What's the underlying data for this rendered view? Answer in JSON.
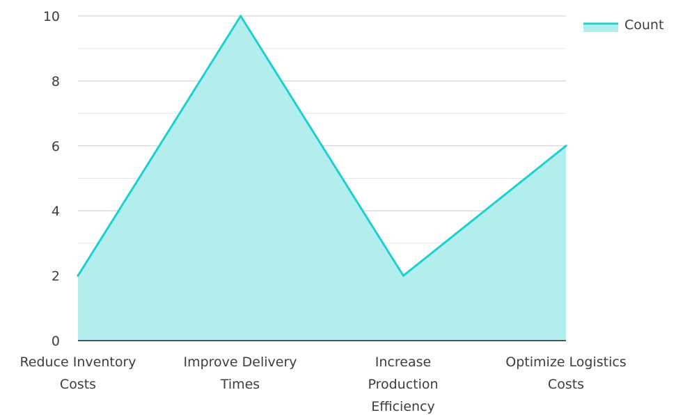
{
  "chart_data": {
    "type": "area",
    "categories": [
      [
        "Reduce Inventory",
        "Costs"
      ],
      [
        "Improve Delivery",
        "Times"
      ],
      [
        "Increase",
        "Production",
        "Efficiency"
      ],
      [
        "Optimize Logistics",
        "Costs"
      ]
    ],
    "series": [
      {
        "name": "Count",
        "values": [
          2,
          10,
          2,
          6
        ]
      }
    ],
    "ylim": [
      0,
      10
    ],
    "yticks": [
      "0",
      "2",
      "4",
      "6",
      "8",
      "10"
    ],
    "grid": true,
    "legend_position": "top-right",
    "colors": {
      "line": "#1ecfcf",
      "fill": "#b2eeee",
      "grid_major": "#cfcfcf",
      "grid_minor": "#e6e6e6",
      "axis": "#222222",
      "text": "#3d3d3d"
    }
  }
}
